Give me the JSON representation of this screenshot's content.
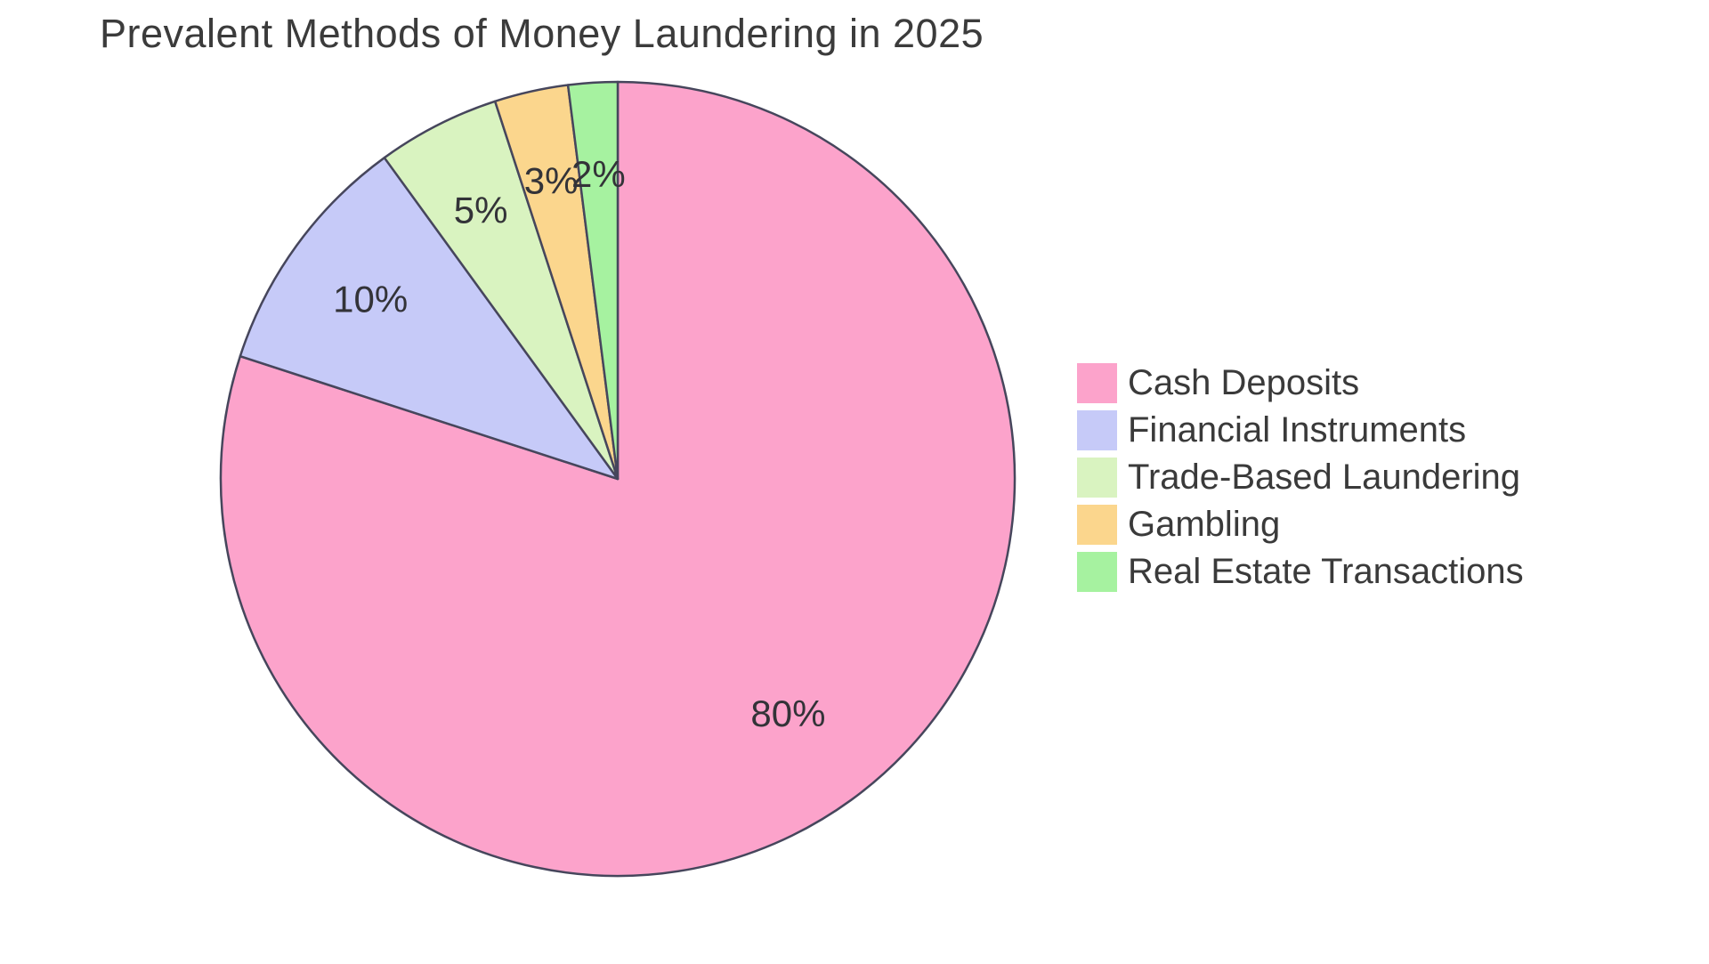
{
  "title": "Prevalent Methods of Money Laundering in 2025",
  "chart_data": {
    "type": "pie",
    "title": "Prevalent Methods of Money Laundering in 2025",
    "categories": [
      "Cash Deposits",
      "Financial Instruments",
      "Trade-Based Laundering",
      "Gambling",
      "Real Estate Transactions"
    ],
    "values": [
      80,
      10,
      5,
      3,
      2
    ],
    "slice_labels": [
      "80%",
      "10%",
      "5%",
      "3%",
      "2%"
    ],
    "colors": [
      "#FCA3CB",
      "#C6CAF8",
      "#D9F3C0",
      "#FBD68D",
      "#A6F2A0"
    ],
    "slice_border_color": "#46465C",
    "value_label_color": "#333338",
    "title_color": "#3B3B3B",
    "legend_text_color": "#3A3A3A",
    "background_color": "#FFFFFF",
    "start_angle": "top",
    "direction": "clockwise",
    "legend_position": "right",
    "grid": false,
    "label_radius_fracs": [
      0.73,
      0.77,
      0.76,
      0.77,
      0.77
    ]
  }
}
